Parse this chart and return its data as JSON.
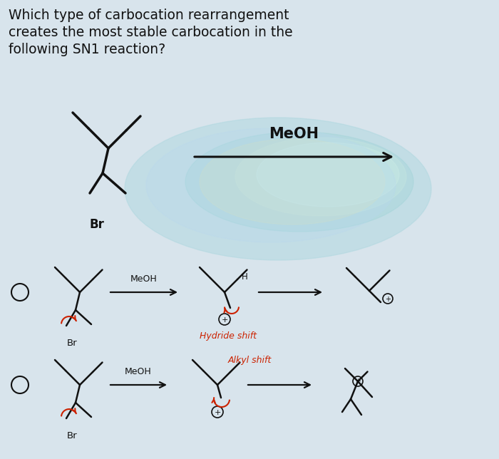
{
  "title_line1": "Which type of carbocation rearrangement",
  "title_line2": "creates the most stable carbocation in the",
  "title_line3": "following SN1 reaction?",
  "title_fontsize": 13.5,
  "bg_color": "#dde8ee",
  "text_color": "#111111",
  "red_color": "#cc2200",
  "meoh_label": "MeOH",
  "hydride_label": "Hydride shift",
  "alkyl_label": "Alkyl shift",
  "br_label": "Br",
  "h_label": "H",
  "plus_label": "+"
}
